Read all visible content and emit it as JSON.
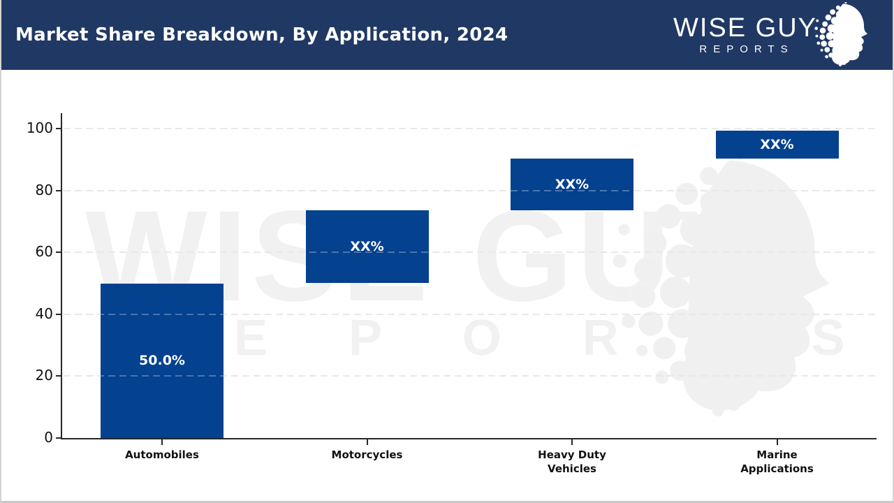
{
  "header": {
    "title": "Market Share Breakdown, By Application, 2024",
    "brand": {
      "line1": "WISE GUY",
      "line2": "REPORTS"
    }
  },
  "watermark": {
    "line1": "WISE GUY",
    "line2": "REPORTS"
  },
  "chart_data": {
    "type": "bar",
    "subtype": "waterfall-floating-bars",
    "title": "Market Share Breakdown, By Application, 2024",
    "categories": [
      "Automobiles",
      "Motorcycles",
      "Heavy Duty Vehicles",
      "Marine Applications"
    ],
    "categories_display": [
      "Automobiles",
      "Motorcycles",
      "Heavy Duty\nVehicles",
      "Marine\nApplications"
    ],
    "segments": [
      {
        "category": "Automobiles",
        "start": 0,
        "end": 50,
        "value_estimated": 50.0,
        "label": "50.0%"
      },
      {
        "category": "Motorcycles",
        "start": 50,
        "end": 73.5,
        "value_estimated": 23.5,
        "label": "XX%"
      },
      {
        "category": "Heavy Duty Vehicles",
        "start": 73.5,
        "end": 90.3,
        "value_estimated": 16.8,
        "label": "XX%"
      },
      {
        "category": "Marine Applications",
        "start": 90.3,
        "end": 99.4,
        "value_estimated": 9.1,
        "label": "XX%"
      }
    ],
    "xlabel": "",
    "ylabel": "",
    "yticks": [
      0,
      20,
      40,
      60,
      80,
      100
    ],
    "ylim": [
      0,
      105
    ],
    "grid": "horizontal-dashed",
    "legend": "none",
    "bar_color": "#04418F",
    "bar_label_color": "#ffffff"
  },
  "colors": {
    "header_bg": "#203864",
    "bar_blue": "#04418F",
    "gridline": "#dfdfdf",
    "axis": "#262626",
    "text": "#111111",
    "watermark": "#f1f1f1",
    "frame_border": "#c9c9c9"
  }
}
